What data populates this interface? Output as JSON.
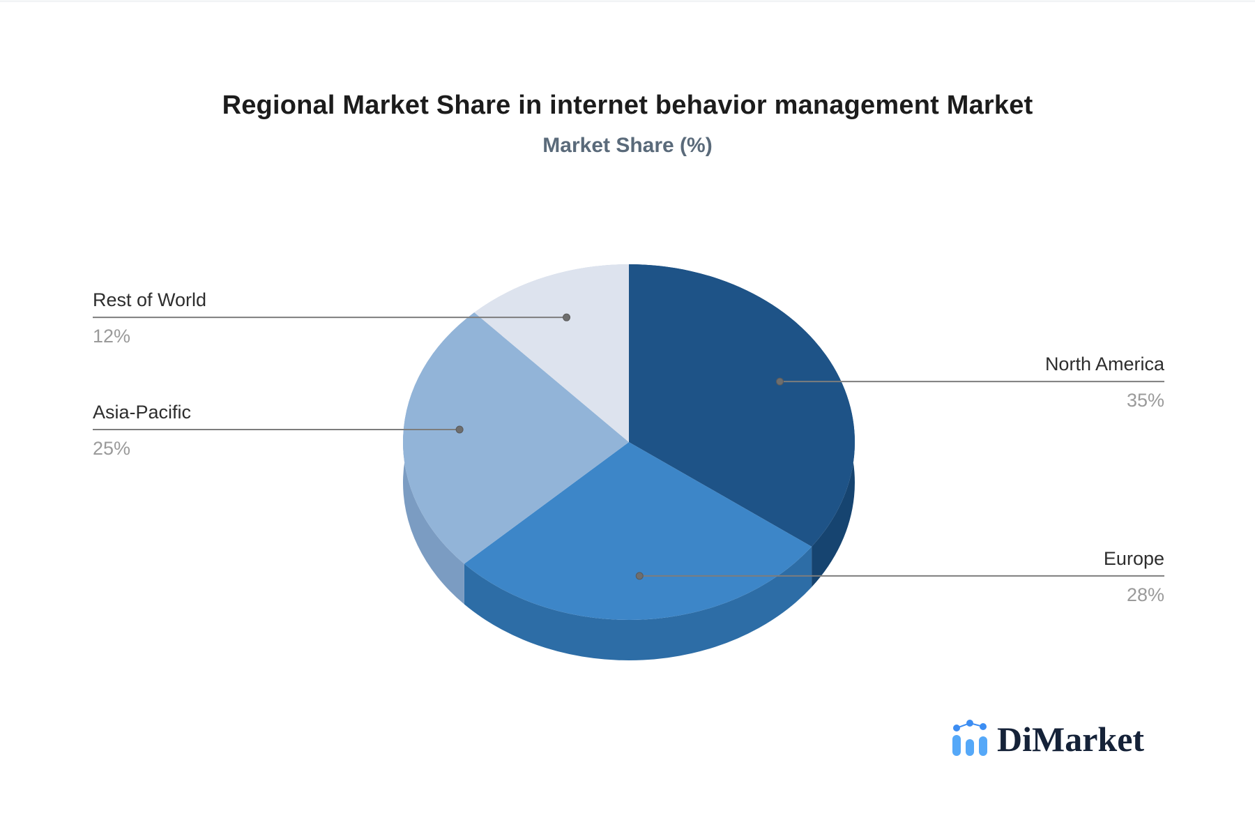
{
  "title": "Regional Market Share in internet behavior management Market",
  "subtitle": "Market Share (%)",
  "chart_data": {
    "type": "pie",
    "style": "3d",
    "title": "Regional Market Share in internet behavior management Market",
    "subtitle": "Market Share (%)",
    "unit": "%",
    "start_angle_deg": 0,
    "direction": "clockwise",
    "labels": [
      "North America",
      "Europe",
      "Asia-Pacific",
      "Rest of World"
    ],
    "values": [
      35,
      28,
      25,
      12
    ],
    "percent_labels": [
      "35%",
      "28%",
      "25%",
      "12%"
    ],
    "colors": [
      "#1e5387",
      "#3d86c8",
      "#92b4d8",
      "#dde3ee"
    ],
    "side_colors": [
      "#164470",
      "#2d6da6",
      "#7b9cc2",
      "#b9c7da"
    ],
    "callout_sides": [
      "right",
      "right",
      "left",
      "left"
    ],
    "leader_line_color": "#7d7d7d",
    "leader_dot_color": "#6e6e6e",
    "legend": "none"
  },
  "branding": {
    "name": "DiMarket",
    "text_color": "#152238",
    "icon": "bar-chart-logo-icon",
    "icon_bar_color": "#55a8f8",
    "icon_dot_color": "#3c8df2"
  }
}
